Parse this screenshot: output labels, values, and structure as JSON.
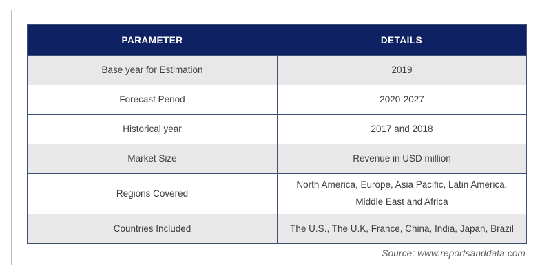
{
  "table": {
    "header": {
      "parameter": "PARAMETER",
      "details": "DETAILS"
    },
    "rows": [
      {
        "parameter": "Base year for Estimation",
        "details": "2019"
      },
      {
        "parameter": "Forecast Period",
        "details": "2020-2027"
      },
      {
        "parameter": "Historical year",
        "details": "2017 and 2018"
      },
      {
        "parameter": "Market Size",
        "details": "Revenue in USD million"
      },
      {
        "parameter": "Regions Covered",
        "details": "North America, Europe, Asia Pacific, Latin America, Middle East and Africa"
      },
      {
        "parameter": "Countries Included",
        "details": "The U.S., The U.K, France, China, India, Japan, Brazil"
      }
    ]
  },
  "source": "Source: www.reportsanddata.com",
  "colors": {
    "header_bg": "#0e2163",
    "header_text": "#ffffff",
    "row_shaded": "#e9e8e8",
    "row_plain": "#ffffff",
    "border": "#3d4f73",
    "body_text": "#3e3e3e",
    "source_text": "#5b5b5b",
    "card_border": "#bcbcbc"
  }
}
